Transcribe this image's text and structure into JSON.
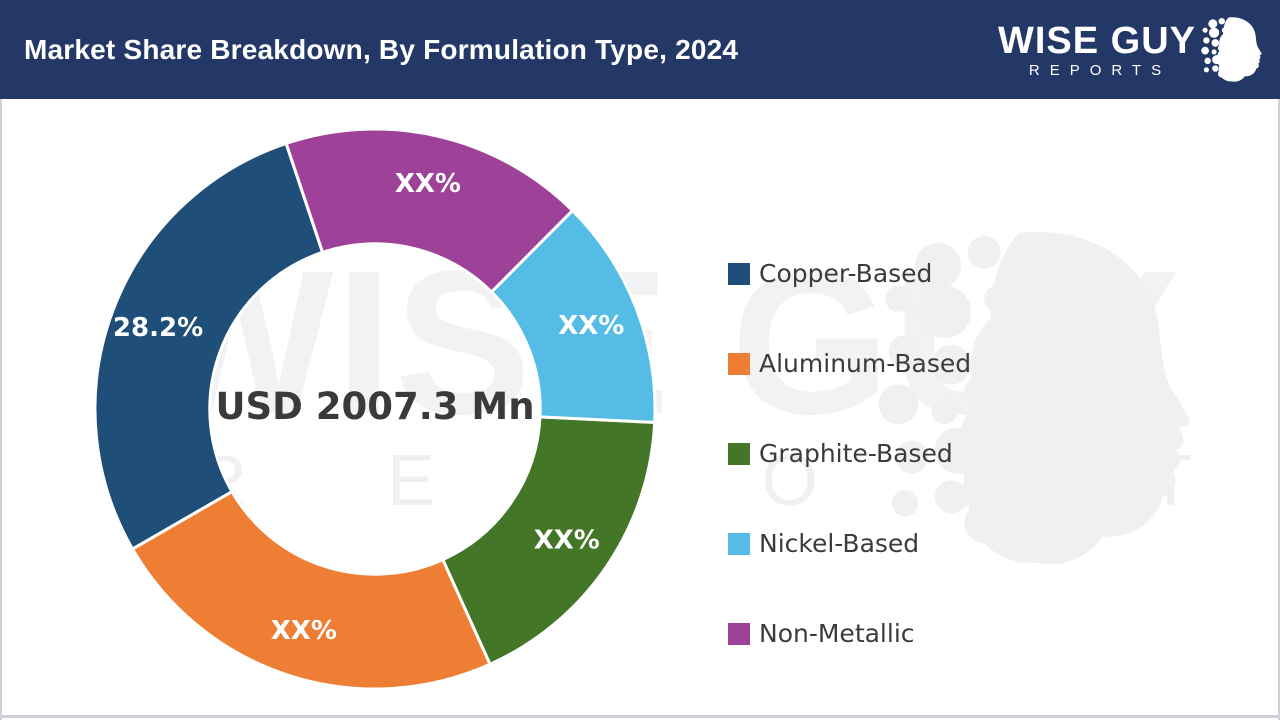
{
  "header": {
    "title": "Market Share Breakdown, By Formulation Type, 2024",
    "bg_color": "#233866",
    "logo": {
      "line1": "WISE GUY",
      "line2": "REPORTS",
      "icon": "wiseguy-face-icon"
    }
  },
  "watermark": {
    "line1": "WISE GUY",
    "line2": "R E P O R T S"
  },
  "chart_data": {
    "type": "pie",
    "donut": true,
    "title": "Market Share Breakdown, By Formulation Type, 2024",
    "center_label": "USD 2007.3 Mn",
    "categories": [
      "Copper-Based",
      "Aluminum-Based",
      "Graphite-Based",
      "Nickel-Based",
      "Non-Metallic"
    ],
    "values_pct": [
      28.2,
      23.4,
      17.5,
      13.3,
      17.6
    ],
    "displayed_labels": [
      "28.2%",
      "XX%",
      "XX%",
      "XX%",
      "XX%"
    ],
    "colors": [
      "#1f4e78",
      "#ee7e33",
      "#447628",
      "#55bde5",
      "#9d4199"
    ],
    "legend_position": "right",
    "direction": "counterclockwise",
    "start_angle_css_deg": -18.5,
    "inner_radius_ratio": 0.59
  }
}
